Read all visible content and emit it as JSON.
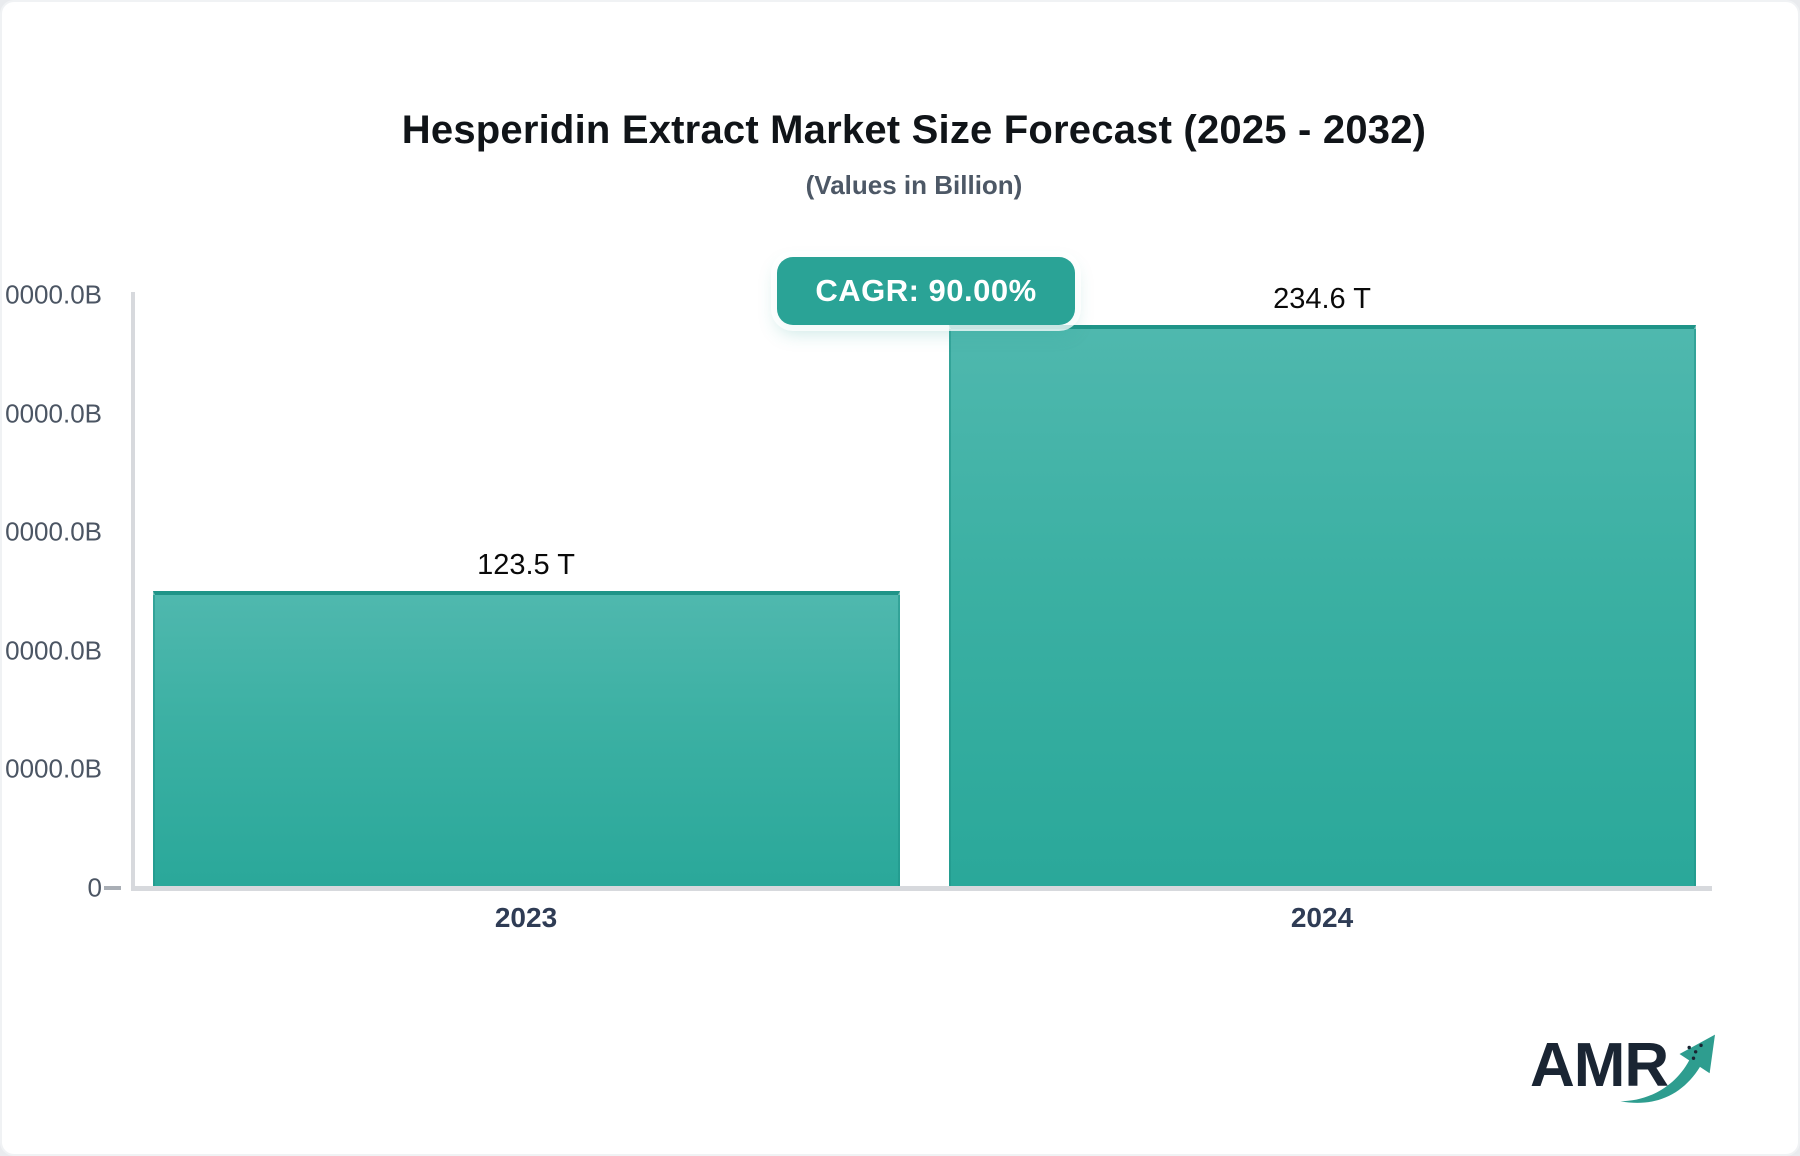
{
  "header": {
    "title": "Hesperidin Extract Market Size Forecast (2025 - 2032)",
    "subtitle": "(Values in Billion)"
  },
  "badge": {
    "text": "CAGR: 90.00%",
    "bg": "#2aa396",
    "color": "#ffffff"
  },
  "chart_data": {
    "type": "bar",
    "title": "Hesperidin Extract Market Size Forecast (2025 - 2032)",
    "subtitle": "(Values in Billion)",
    "categories": [
      "2023",
      "2024"
    ],
    "values": [
      123.5,
      234.6
    ],
    "value_unit": "T",
    "bar_labels": [
      "123.5 T",
      "234.6 T"
    ],
    "cagr_percent": "90.00%",
    "y_axis": {
      "tick_labels_visible": [
        "0000.0B",
        "0000.0B",
        "0000.0B",
        "0000.0B",
        "0000.0B",
        "0"
      ],
      "note": "tick labels are clipped at the left image edge",
      "unit": "B",
      "ylim_T": [
        0,
        250
      ]
    },
    "grid": false,
    "legend": "none",
    "bar_color_top": "#4fb8ae",
    "bar_color_bottom": "#2aa89a",
    "bar_border_color": "#1f9488"
  },
  "logo": {
    "text": "AMR",
    "text_color": "#1a2533",
    "arrow_color": "#2e9d8f"
  }
}
